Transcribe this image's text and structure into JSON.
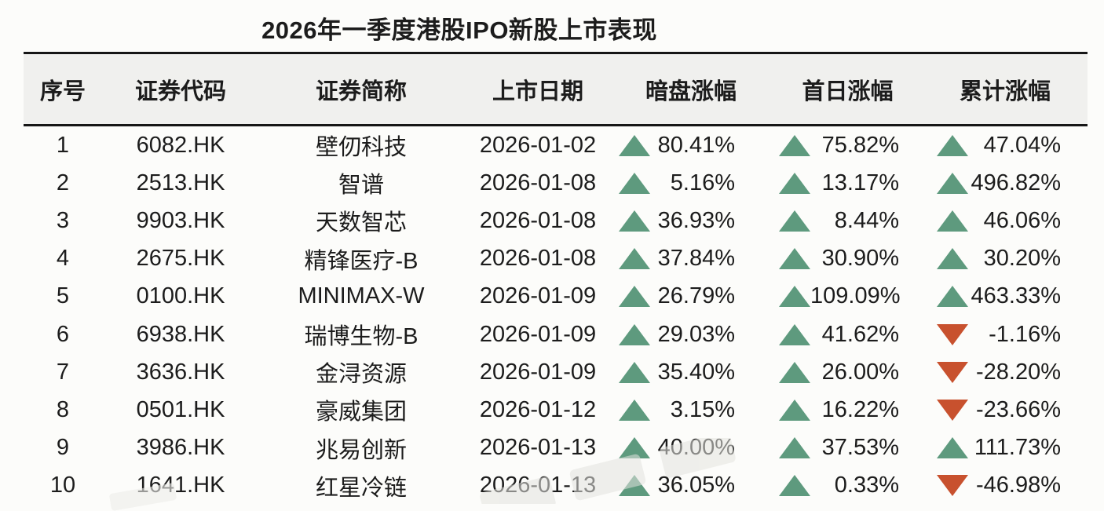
{
  "title": "2026年一季度港股IPO新股上市表现",
  "colors": {
    "up_green": "#5e9a7e",
    "down_red": "#c8512e",
    "header_bg": "#f0f0ee",
    "rule": "#161616",
    "text": "#1c1c1c",
    "page_bg": "#fcfcfa"
  },
  "table": {
    "headers": [
      "序号",
      "证券代码",
      "证券简称",
      "上市日期",
      "暗盘涨幅",
      "首日涨幅",
      "累计涨幅"
    ],
    "rows": [
      {
        "no": "1",
        "code": "6082.HK",
        "name": "壁仞科技",
        "date": "2026-01-02",
        "dark": {
          "dir": "up",
          "text": "80.41%"
        },
        "first": {
          "dir": "up",
          "text": "75.82%"
        },
        "cum": {
          "dir": "up",
          "text": "47.04%"
        }
      },
      {
        "no": "2",
        "code": "2513.HK",
        "name": "智谱",
        "date": "2026-01-08",
        "dark": {
          "dir": "up",
          "text": "5.16%"
        },
        "first": {
          "dir": "up",
          "text": "13.17%"
        },
        "cum": {
          "dir": "up",
          "text": "496.82%"
        }
      },
      {
        "no": "3",
        "code": "9903.HK",
        "name": "天数智芯",
        "date": "2026-01-08",
        "dark": {
          "dir": "up",
          "text": "36.93%"
        },
        "first": {
          "dir": "up",
          "text": "8.44%"
        },
        "cum": {
          "dir": "up",
          "text": "46.06%"
        }
      },
      {
        "no": "4",
        "code": "2675.HK",
        "name": "精锋医疗-B",
        "date": "2026-01-08",
        "dark": {
          "dir": "up",
          "text": "37.84%"
        },
        "first": {
          "dir": "up",
          "text": "30.90%"
        },
        "cum": {
          "dir": "up",
          "text": "30.20%"
        }
      },
      {
        "no": "5",
        "code": "0100.HK",
        "name": "MINIMAX-W",
        "date": "2026-01-09",
        "dark": {
          "dir": "up",
          "text": "26.79%"
        },
        "first": {
          "dir": "up",
          "text": "109.09%"
        },
        "cum": {
          "dir": "up",
          "text": "463.33%"
        }
      },
      {
        "no": "6",
        "code": "6938.HK",
        "name": "瑞博生物-B",
        "date": "2026-01-09",
        "dark": {
          "dir": "up",
          "text": "29.03%"
        },
        "first": {
          "dir": "up",
          "text": "41.62%"
        },
        "cum": {
          "dir": "down",
          "text": "-1.16%"
        }
      },
      {
        "no": "7",
        "code": "3636.HK",
        "name": "金浔资源",
        "date": "2026-01-09",
        "dark": {
          "dir": "up",
          "text": "35.40%"
        },
        "first": {
          "dir": "up",
          "text": "26.00%"
        },
        "cum": {
          "dir": "down",
          "text": "-28.20%"
        }
      },
      {
        "no": "8",
        "code": "0501.HK",
        "name": "豪威集团",
        "date": "2026-01-12",
        "dark": {
          "dir": "up",
          "text": "3.15%"
        },
        "first": {
          "dir": "up",
          "text": "16.22%"
        },
        "cum": {
          "dir": "down",
          "text": "-23.66%"
        }
      },
      {
        "no": "9",
        "code": "3986.HK",
        "name": "兆易创新",
        "date": "2026-01-13",
        "dark": {
          "dir": "up",
          "text": "40.00%"
        },
        "first": {
          "dir": "up",
          "text": "37.53%"
        },
        "cum": {
          "dir": "up",
          "text": "111.73%"
        }
      },
      {
        "no": "10",
        "code": "1641.HK",
        "name": "红星冷链",
        "date": "2026-01-13",
        "dark": {
          "dir": "up",
          "text": "36.05%"
        },
        "first": {
          "dir": "up",
          "text": "0.33%"
        },
        "cum": {
          "dir": "down",
          "text": "-46.98%"
        }
      }
    ]
  },
  "chart_data": {
    "type": "table",
    "title": "2026年一季度港股IPO新股上市表现",
    "columns": [
      "序号",
      "证券代码",
      "证券简称",
      "上市日期",
      "暗盘涨幅",
      "首日涨幅",
      "累计涨幅"
    ],
    "rows": [
      [
        "1",
        "6082.HK",
        "壁仞科技",
        "2026-01-02",
        "80.41%",
        "75.82%",
        "47.04%"
      ],
      [
        "2",
        "2513.HK",
        "智谱",
        "2026-01-08",
        "5.16%",
        "13.17%",
        "496.82%"
      ],
      [
        "3",
        "9903.HK",
        "天数智芯",
        "2026-01-08",
        "36.93%",
        "8.44%",
        "46.06%"
      ],
      [
        "4",
        "2675.HK",
        "精锋医疗-B",
        "2026-01-08",
        "37.84%",
        "30.90%",
        "30.20%"
      ],
      [
        "5",
        "0100.HK",
        "MINIMAX-W",
        "2026-01-09",
        "26.79%",
        "109.09%",
        "463.33%"
      ],
      [
        "6",
        "6938.HK",
        "瑞博生物-B",
        "2026-01-09",
        "29.03%",
        "41.62%",
        "-1.16%"
      ],
      [
        "7",
        "3636.HK",
        "金浔资源",
        "2026-01-09",
        "35.40%",
        "26.00%",
        "-28.20%"
      ],
      [
        "8",
        "0501.HK",
        "豪威集团",
        "2026-01-12",
        "3.15%",
        "16.22%",
        "-23.66%"
      ],
      [
        "9",
        "3986.HK",
        "兆易创新",
        "2026-01-13",
        "40.00%",
        "37.53%",
        "111.73%"
      ],
      [
        "10",
        "1641.HK",
        "红星冷链",
        "2026-01-13",
        "36.05%",
        "0.33%",
        "-46.98%"
      ]
    ]
  }
}
